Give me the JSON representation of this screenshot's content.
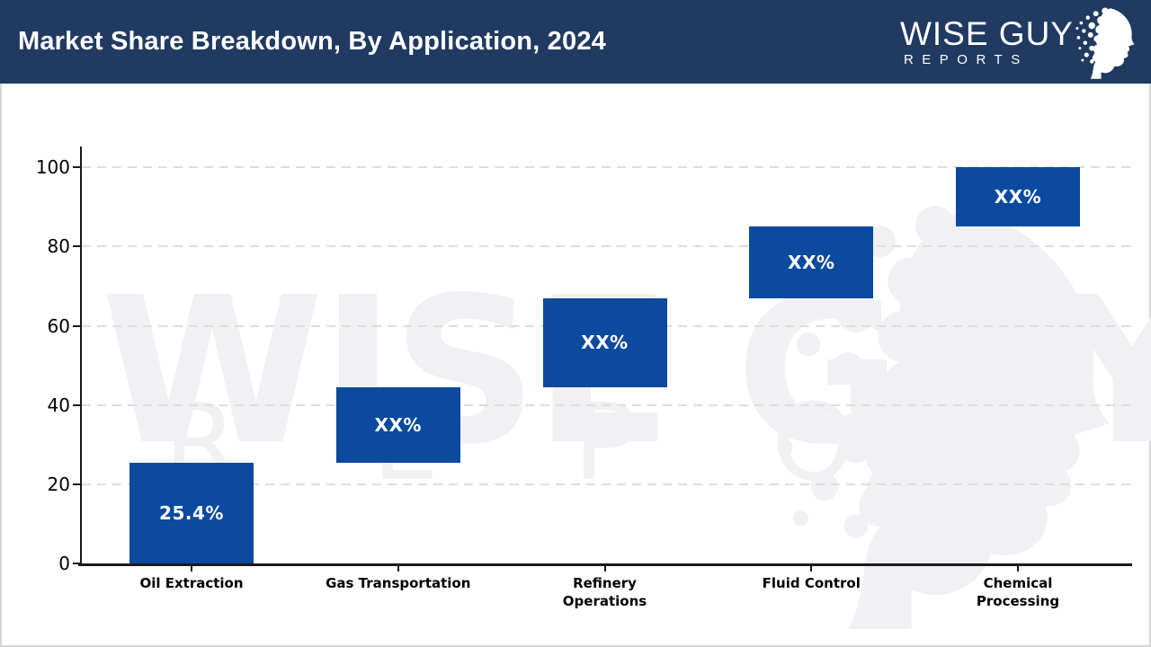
{
  "header": {
    "title": "Market Share Breakdown, By Application, 2024",
    "bg_color": "#203a61",
    "logo": {
      "line1": "WISE GUY",
      "line2": "REPORTS"
    }
  },
  "watermark": {
    "line1": "WISE GUY",
    "line2": "R E P O R T S"
  },
  "chart_data": {
    "type": "bar",
    "subtype": "waterfall-floating-bars",
    "title": "Market Share Breakdown, By Application, 2024",
    "categories": [
      "Oil Extraction",
      "Gas Transportation",
      "Refinery\nOperations",
      "Fluid Control",
      "Chemical\nProcessing"
    ],
    "bars": [
      {
        "category": "Oil Extraction",
        "start": 0,
        "end": 25.4,
        "label": "25.4%"
      },
      {
        "category": "Gas Transportation",
        "start": 25.4,
        "end": 44.5,
        "label": "XX%"
      },
      {
        "category": "Refinery Operations",
        "start": 44.5,
        "end": 67,
        "label": "XX%"
      },
      {
        "category": "Fluid Control",
        "start": 67,
        "end": 85,
        "label": "XX%"
      },
      {
        "category": "Chemical Processing",
        "start": 85,
        "end": 100,
        "label": "XX%"
      }
    ],
    "y_ticks": [
      0,
      20,
      40,
      60,
      80,
      100
    ],
    "ylim": [
      0,
      105
    ],
    "xlabel": "",
    "ylabel": "",
    "bar_color": "#0b4a9e",
    "grid": "horizontal-dashed",
    "legend": "none"
  }
}
